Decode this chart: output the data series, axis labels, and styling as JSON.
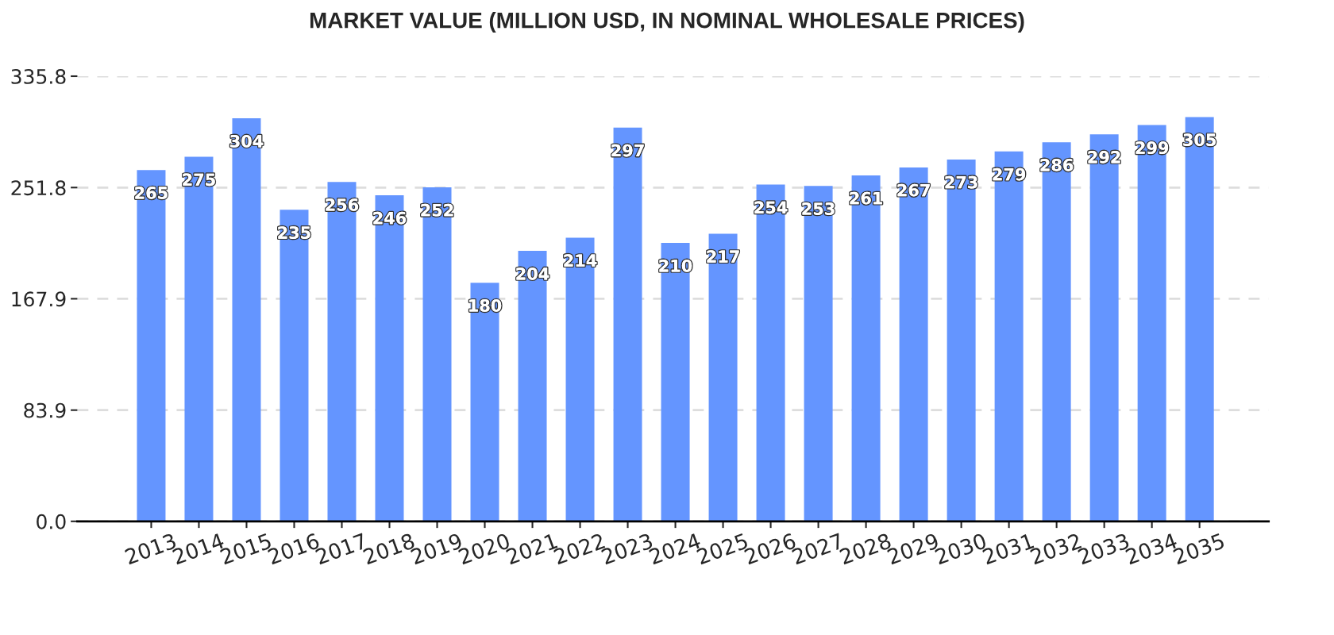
{
  "chart_data": {
    "type": "bar",
    "title": "MARKET VALUE (MILLION USD, IN NOMINAL WHOLESALE PRICES)",
    "categories": [
      "2013",
      "2014",
      "2015",
      "2016",
      "2017",
      "2018",
      "2019",
      "2020",
      "2021",
      "2022",
      "2023",
      "2024",
      "2025",
      "2026",
      "2027",
      "2028",
      "2029",
      "2030",
      "2031",
      "2032",
      "2033",
      "2034",
      "2035"
    ],
    "values": [
      265,
      275,
      304,
      235,
      256,
      246,
      252,
      180,
      204,
      214,
      297,
      210,
      217,
      254,
      253,
      261,
      267,
      273,
      279,
      286,
      292,
      299,
      305
    ],
    "color": "#6495ff",
    "ylim": [
      0,
      335.8
    ],
    "yticks": [
      {
        "value": 0,
        "label": "0.0"
      },
      83.9,
      167.9,
      251.8,
      335.8
    ],
    "grid": "y",
    "data_labels": true
  }
}
